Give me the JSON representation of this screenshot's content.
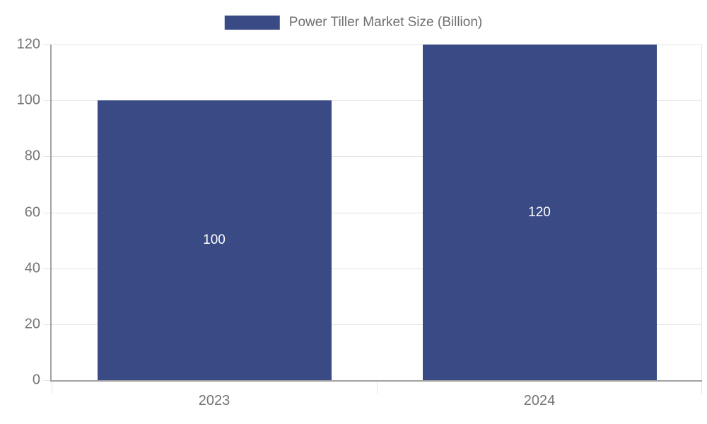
{
  "legend": {
    "items": [
      {
        "label": "Power Tiller Market Size (Billion)",
        "color": "#394a85"
      }
    ]
  },
  "colors": {
    "bar": "#394a85",
    "grid": "#e3e3e3",
    "axis": "#a2a2a2",
    "tick_text": "#757575",
    "legend_text": "#6f6f6f",
    "value_label_text": "#ffffff",
    "background": "#ffffff"
  },
  "chart_data": {
    "type": "bar",
    "title": "",
    "categories": [
      "2023",
      "2024"
    ],
    "series": [
      {
        "name": "Power Tiller Market Size (Billion)",
        "values": [
          100,
          120
        ],
        "color": "#394a85"
      }
    ],
    "value_labels": [
      "100",
      "120"
    ],
    "value_label_position": "inside-center",
    "xlabel": "",
    "ylabel": "",
    "y_ticks": [
      0,
      20,
      40,
      60,
      80,
      100,
      120
    ],
    "ylim": [
      0,
      120
    ],
    "grid": true,
    "legend_position": "top-center"
  }
}
